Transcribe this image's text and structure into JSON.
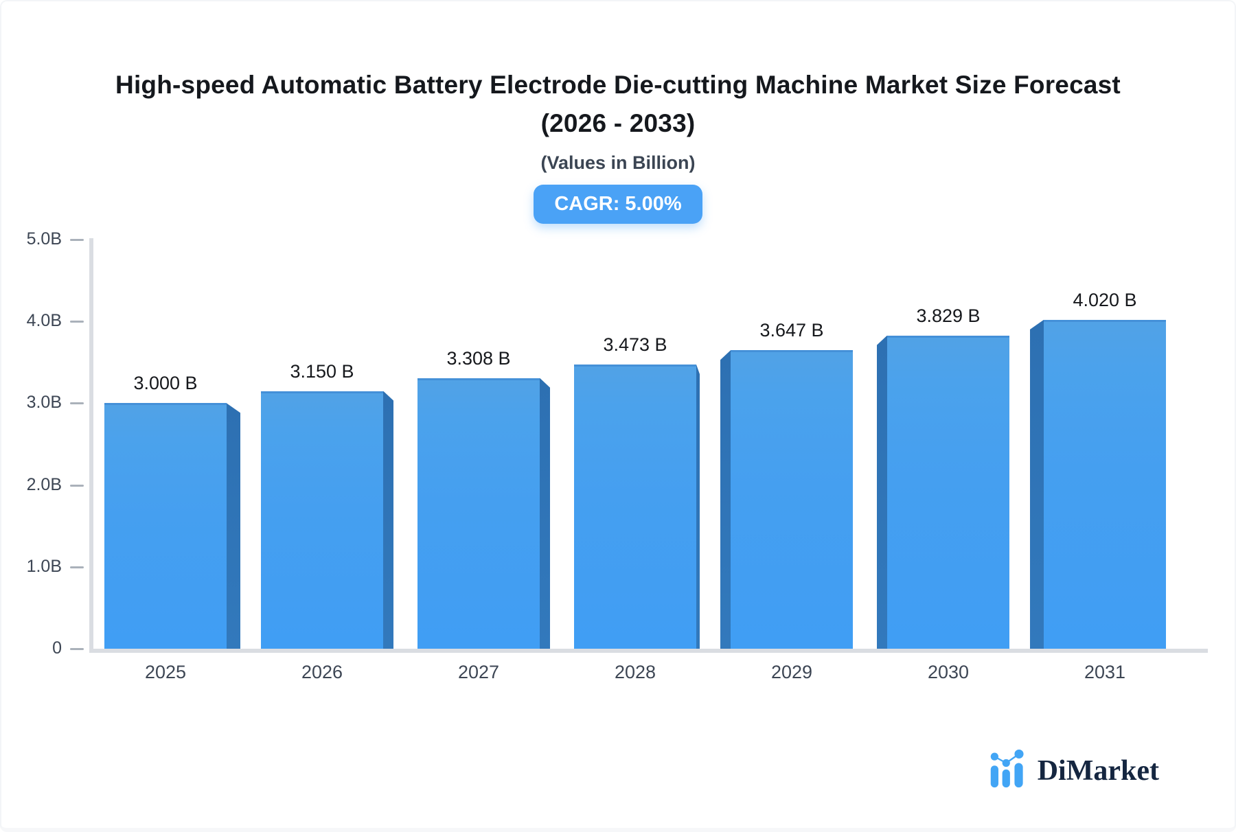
{
  "header": {
    "title_line1": "High-speed Automatic Battery Electrode Die-cutting Machine Market Size Forecast",
    "title_line2": "(2026 - 2033)",
    "subtitle": "(Values in Billion)",
    "cagr_badge": "CAGR: 5.00%"
  },
  "chart_data": {
    "type": "bar",
    "title": "High-speed Automatic Battery Electrode Die-cutting Machine Market Size Forecast (2026 - 2033)",
    "subtitle": "(Values in Billion)",
    "annotation": "CAGR: 5.00%",
    "categories": [
      "2025",
      "2026",
      "2027",
      "2028",
      "2029",
      "2030",
      "2031"
    ],
    "values": [
      3.0,
      3.15,
      3.308,
      3.473,
      3.647,
      3.829,
      4.02
    ],
    "value_labels": [
      "3.000 B",
      "3.150 B",
      "3.308 B",
      "3.473 B",
      "3.647 B",
      "3.829 B",
      "4.020 B"
    ],
    "xlabel": "",
    "ylabel": "",
    "ylim": [
      0,
      5
    ],
    "y_ticks": [
      "0",
      "1.0B",
      "2.0B",
      "3.0B",
      "4.0B",
      "5.0B"
    ],
    "grid": false,
    "legend": null,
    "bar_style": "3d-extruded",
    "colors": {
      "bar_face_top": "#51a2e6",
      "bar_face_bottom": "#409ef4",
      "bar_side": "#2f74b6",
      "axis_line": "#dadde2",
      "tick_label": "#3d4654",
      "data_label": "#16181c"
    }
  },
  "badge_colors": {
    "background": "#4aa2f6",
    "text": "#ffffff"
  },
  "logo": {
    "text": "DiMarket",
    "icon": "bar-chart-logo-icon",
    "text_color": "#152640",
    "accent_color": "#42a5f5"
  }
}
